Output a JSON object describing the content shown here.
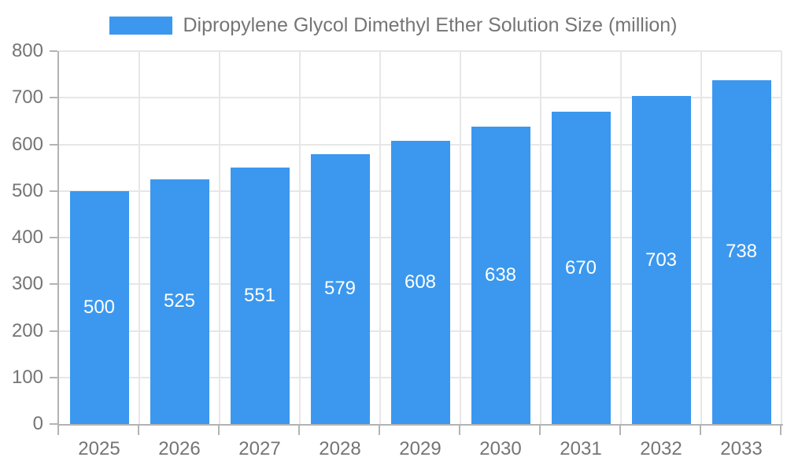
{
  "legend": {
    "label": "Dipropylene Glycol Dimethyl Ether Solution Size (million)"
  },
  "chart_data": {
    "type": "bar",
    "title": "Dipropylene Glycol Dimethyl Ether Solution Size (million)",
    "categories": [
      "2025",
      "2026",
      "2027",
      "2028",
      "2029",
      "2030",
      "2031",
      "2032",
      "2033"
    ],
    "values": [
      500,
      525,
      551,
      579,
      608,
      638,
      670,
      703,
      738
    ],
    "xlabel": "",
    "ylabel": "",
    "ylim": [
      0,
      800
    ],
    "yticks": [
      0,
      100,
      200,
      300,
      400,
      500,
      600,
      700,
      800
    ],
    "grid": true,
    "legend_position": "top",
    "value_labels": "inside-center",
    "colors": {
      "bar": "#3b98ee",
      "value_label": "#ffffff",
      "axis_text": "#757575",
      "axis_line": "#b3b3b3",
      "gridline": "#e7e7e7",
      "background": "#ffffff"
    }
  }
}
